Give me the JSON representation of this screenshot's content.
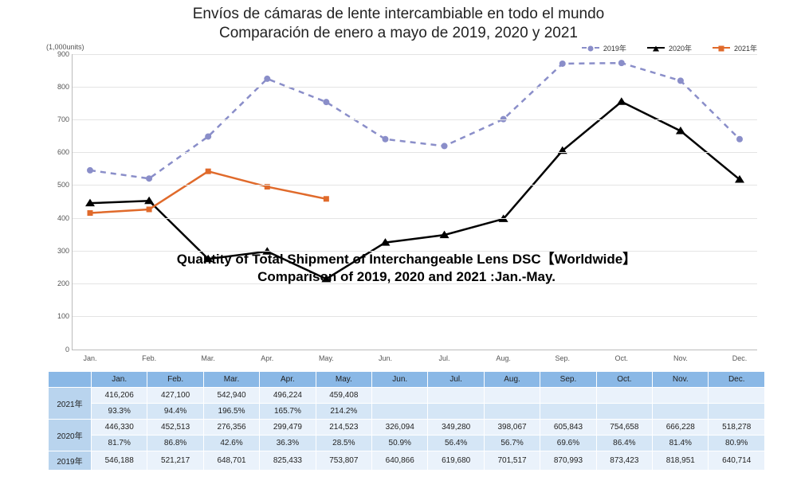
{
  "title": {
    "line1": "Envíos de cámaras de lente intercambiable en todo el mundo",
    "line2": "Comparación de enero a mayo de 2019, 2020 y 2021",
    "fontsize": 19
  },
  "chart": {
    "type": "line",
    "y_unit_label": "(1,000units)",
    "ylim": [
      0,
      900
    ],
    "ytick_step": 100,
    "yticks": [
      0,
      100,
      200,
      300,
      400,
      500,
      600,
      700,
      800,
      900
    ],
    "categories": [
      "Jan.",
      "Feb.",
      "Mar.",
      "Apr.",
      "May.",
      "Jun.",
      "Jul.",
      "Aug.",
      "Sep.",
      "Oct.",
      "Nov.",
      "Dec."
    ],
    "grid_color": "#e4e4e4",
    "axis_color": "#bbbbbb",
    "background_color": "#ffffff",
    "legend_position": "top-right",
    "series": [
      {
        "name": "2019年",
        "values": [
          546,
          521,
          649,
          825,
          754,
          641,
          620,
          702,
          871,
          873,
          819,
          641
        ],
        "color": "#8a8ec9",
        "line_style": "dashed",
        "line_width": 2.5,
        "marker": "circle",
        "marker_size": 8
      },
      {
        "name": "2020年",
        "values": [
          446,
          453,
          276,
          299,
          215,
          326,
          349,
          398,
          606,
          755,
          666,
          518
        ],
        "color": "#000000",
        "line_style": "solid",
        "line_width": 2.5,
        "marker": "triangle",
        "marker_size": 8
      },
      {
        "name": "2021年",
        "values": [
          416,
          427,
          543,
          496,
          459
        ],
        "color": "#e06a2b",
        "line_style": "solid",
        "line_width": 2.5,
        "marker": "square",
        "marker_size": 7
      }
    ],
    "overlay_text": {
      "line1": "Quantity of Total Shipment of Interchangeable Lens DSC【Worldwide】",
      "line2": "Comparison of 2019, 2020 and 2021 :Jan.-May.",
      "fontsize": 17,
      "fontweight": 700
    }
  },
  "table": {
    "columns": [
      "",
      "Jan.",
      "Feb.",
      "Mar.",
      "Apr.",
      "May.",
      "Jun.",
      "Jul.",
      "Aug.",
      "Sep.",
      "Oct.",
      "Nov.",
      "Dec."
    ],
    "header_bg": "#8ab8e6",
    "rowlabel_bg": "#b9d4ee",
    "cell_bg_a": "#eaf2fb",
    "cell_bg_b": "#d5e6f6",
    "rows": [
      {
        "label": "2021年",
        "values": [
          "416,206",
          "427,100",
          "542,940",
          "496,224",
          "459,408",
          "",
          "",
          "",
          "",
          "",
          "",
          ""
        ],
        "percent": [
          "93.3%",
          "94.4%",
          "196.5%",
          "165.7%",
          "214.2%",
          "",
          "",
          "",
          "",
          "",
          "",
          ""
        ]
      },
      {
        "label": "2020年",
        "values": [
          "446,330",
          "452,513",
          "276,356",
          "299,479",
          "214,523",
          "326,094",
          "349,280",
          "398,067",
          "605,843",
          "754,658",
          "666,228",
          "518,278"
        ],
        "percent": [
          "81.7%",
          "86.8%",
          "42.6%",
          "36.3%",
          "28.5%",
          "50.9%",
          "56.4%",
          "56.7%",
          "69.6%",
          "86.4%",
          "81.4%",
          "80.9%"
        ]
      },
      {
        "label": "2019年",
        "values": [
          "546,188",
          "521,217",
          "648,701",
          "825,433",
          "753,807",
          "640,866",
          "619,680",
          "701,517",
          "870,993",
          "873,423",
          "818,951",
          "640,714"
        ],
        "percent": null
      }
    ]
  }
}
